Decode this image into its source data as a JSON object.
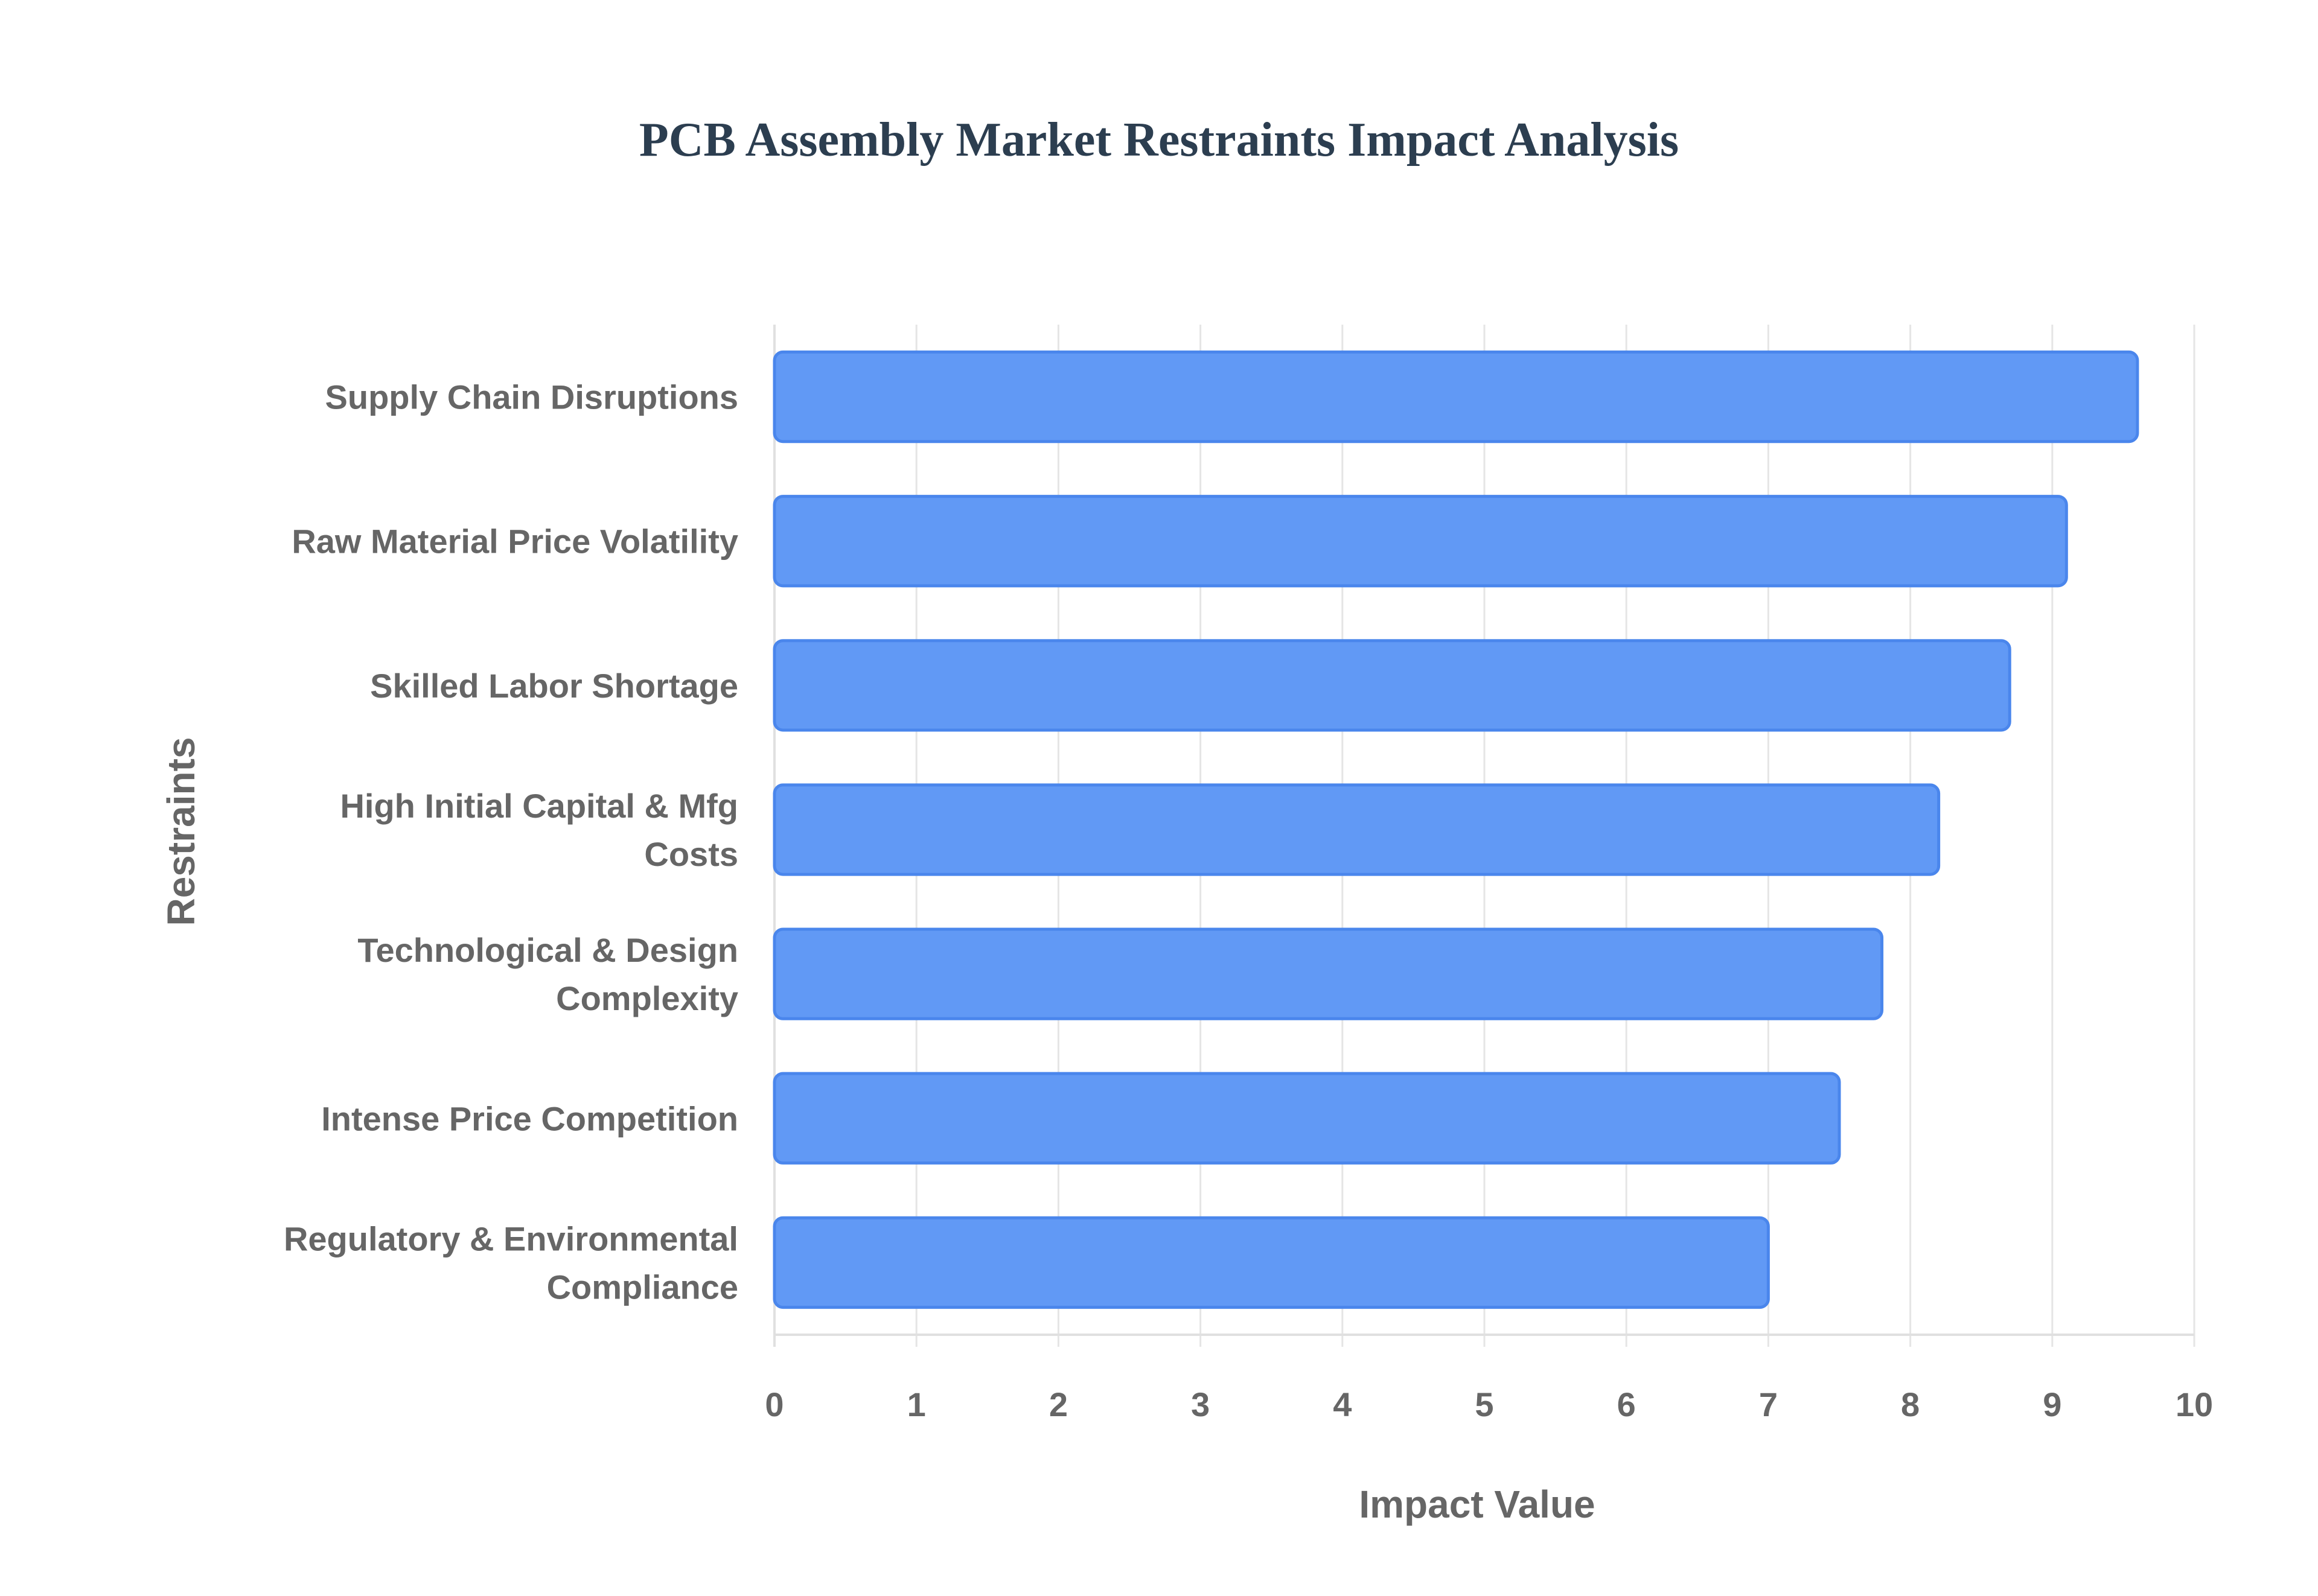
{
  "chart_data": {
    "type": "bar",
    "orientation": "horizontal",
    "title": "PCB Assembly Market Restraints Impact Analysis",
    "xlabel": "Impact Value",
    "ylabel": "Restraints",
    "xlim": [
      0,
      10
    ],
    "x_ticks": [
      0,
      1,
      2,
      3,
      4,
      5,
      6,
      7,
      8,
      9,
      10
    ],
    "grid": true,
    "legend": "none",
    "categories": [
      [
        "Supply Chain Disruptions"
      ],
      [
        "Raw Material Price Volatility"
      ],
      [
        "Skilled Labor Shortage"
      ],
      [
        "High Initial Capital & Mfg",
        "Costs"
      ],
      [
        "Technological & Design",
        "Complexity"
      ],
      [
        "Intense Price Competition"
      ],
      [
        "Regulatory & Environmental",
        "Compliance"
      ]
    ],
    "values": [
      9.6,
      9.1,
      8.7,
      8.2,
      7.8,
      7.5,
      7.0
    ],
    "colors": {
      "bar_fill": "#6199f5",
      "bar_stroke": "#4a86ec",
      "title": "#2c3e50",
      "text": "#666666",
      "grid": "#e5e5e5"
    }
  }
}
